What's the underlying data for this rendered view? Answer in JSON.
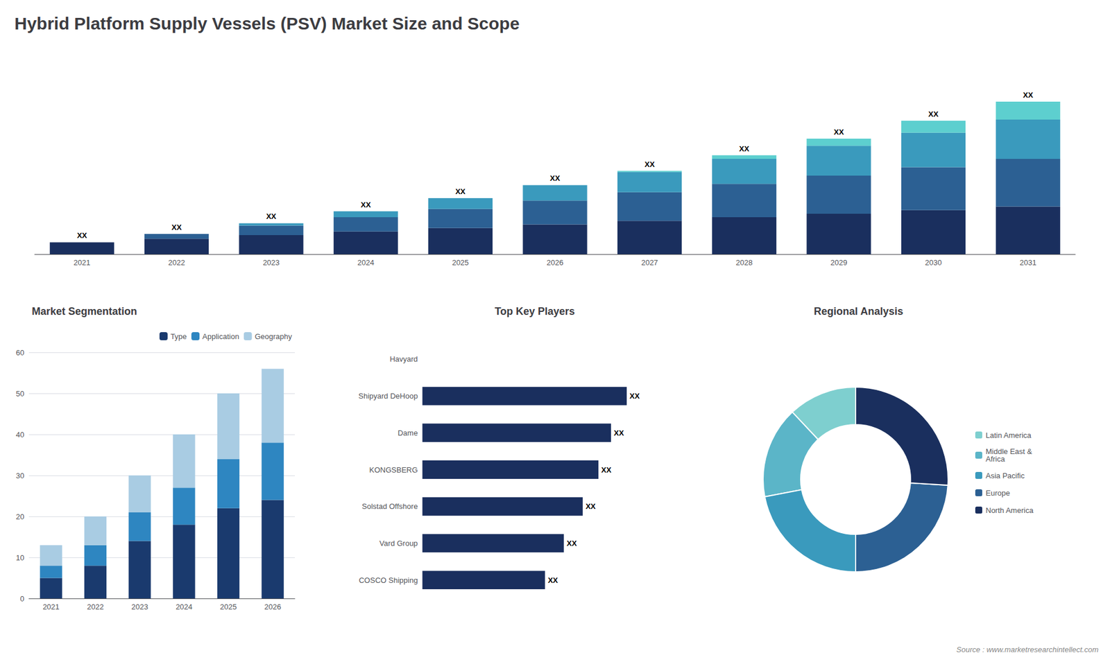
{
  "chart_data": [
    {
      "type": "bar",
      "title": "Hybrid Platform Supply Vessels (PSV) Market Size and Scope",
      "annotations": [
        "Source : www.marketresearchintellect.com"
      ],
      "categories": [
        "2021",
        "2022",
        "2023",
        "2024",
        "2025",
        "2026",
        "2027",
        "2028",
        "2029",
        "2030",
        "2031"
      ],
      "series": [
        {
          "color": "#1a2f5e",
          "values": [
            1.0,
            1.3,
            1.6,
            1.9,
            2.2,
            2.5,
            2.8,
            3.1,
            3.4,
            3.7,
            4.0
          ]
        },
        {
          "color": "#2c6093",
          "values": [
            0.0,
            0.4,
            0.8,
            1.2,
            1.6,
            2.0,
            2.4,
            2.8,
            3.2,
            3.6,
            4.0
          ]
        },
        {
          "color": "#3a9abd",
          "values": [
            0.0,
            0.0,
            0.2,
            0.5,
            0.9,
            1.3,
            1.7,
            2.1,
            2.5,
            2.9,
            3.3
          ]
        },
        {
          "color": "#5dcfcf",
          "values": [
            0.0,
            0.0,
            0.0,
            0.0,
            0.0,
            0.0,
            0.1,
            0.3,
            0.6,
            1.0,
            1.5
          ],
          "value_labels": [
            "XX",
            "XX",
            "XX",
            "XX",
            "XX",
            "XX",
            "XX",
            "XX",
            "XX",
            "XX",
            "XX"
          ]
        }
      ],
      "stacked": true,
      "ylim": [
        0,
        16
      ],
      "tick_labels": "x",
      "grid": false
    },
    {
      "type": "bar",
      "title": "Market Segmentation",
      "categories": [
        "2021",
        "2022",
        "2023",
        "2024",
        "2025",
        "2026"
      ],
      "series": [
        {
          "name": "Type",
          "color": "#1a3a6e",
          "values": [
            5,
            8,
            14,
            18,
            22,
            24
          ]
        },
        {
          "name": "Application",
          "color": "#2e86c1",
          "values": [
            3,
            5,
            7,
            9,
            12,
            14
          ]
        },
        {
          "name": "Geography",
          "color": "#a9cce3",
          "values": [
            5,
            7,
            9,
            13,
            16,
            18
          ]
        }
      ],
      "stacked": true,
      "ylim": [
        0,
        60
      ],
      "yticks": [
        0,
        10,
        20,
        30,
        40,
        50,
        60
      ],
      "grid": true,
      "legend": "upper right"
    },
    {
      "type": "bar",
      "title": "Top Key Players",
      "orientation": "horizontal",
      "categories": [
        "Havyard",
        "Shipyard DeHoop",
        "Dame",
        "KONGSBERG",
        "Solstad Offshore",
        "Vard Group",
        "COSCO Shipping"
      ],
      "values": [
        0,
        6.5,
        6.0,
        5.6,
        5.1,
        4.5,
        3.9
      ],
      "value_labels": [
        null,
        "XX",
        "XX",
        "XX",
        "XX",
        "XX",
        "XX"
      ],
      "color": "#1a2f5e",
      "xlim": [
        0,
        9
      ],
      "tick_labels": "y",
      "grid": false
    },
    {
      "type": "pie",
      "title": "Regional Analysis",
      "categories": [
        "Latin America",
        "Middle East &\nAfrica",
        "Asia Pacific",
        "Europe",
        "North America"
      ],
      "values": [
        12,
        16,
        22,
        24,
        26
      ],
      "colors": [
        "#7ecfcf",
        "#5bb5c8",
        "#3a9abd",
        "#2c6093",
        "#1a2f5e"
      ],
      "legend": "right"
    }
  ]
}
